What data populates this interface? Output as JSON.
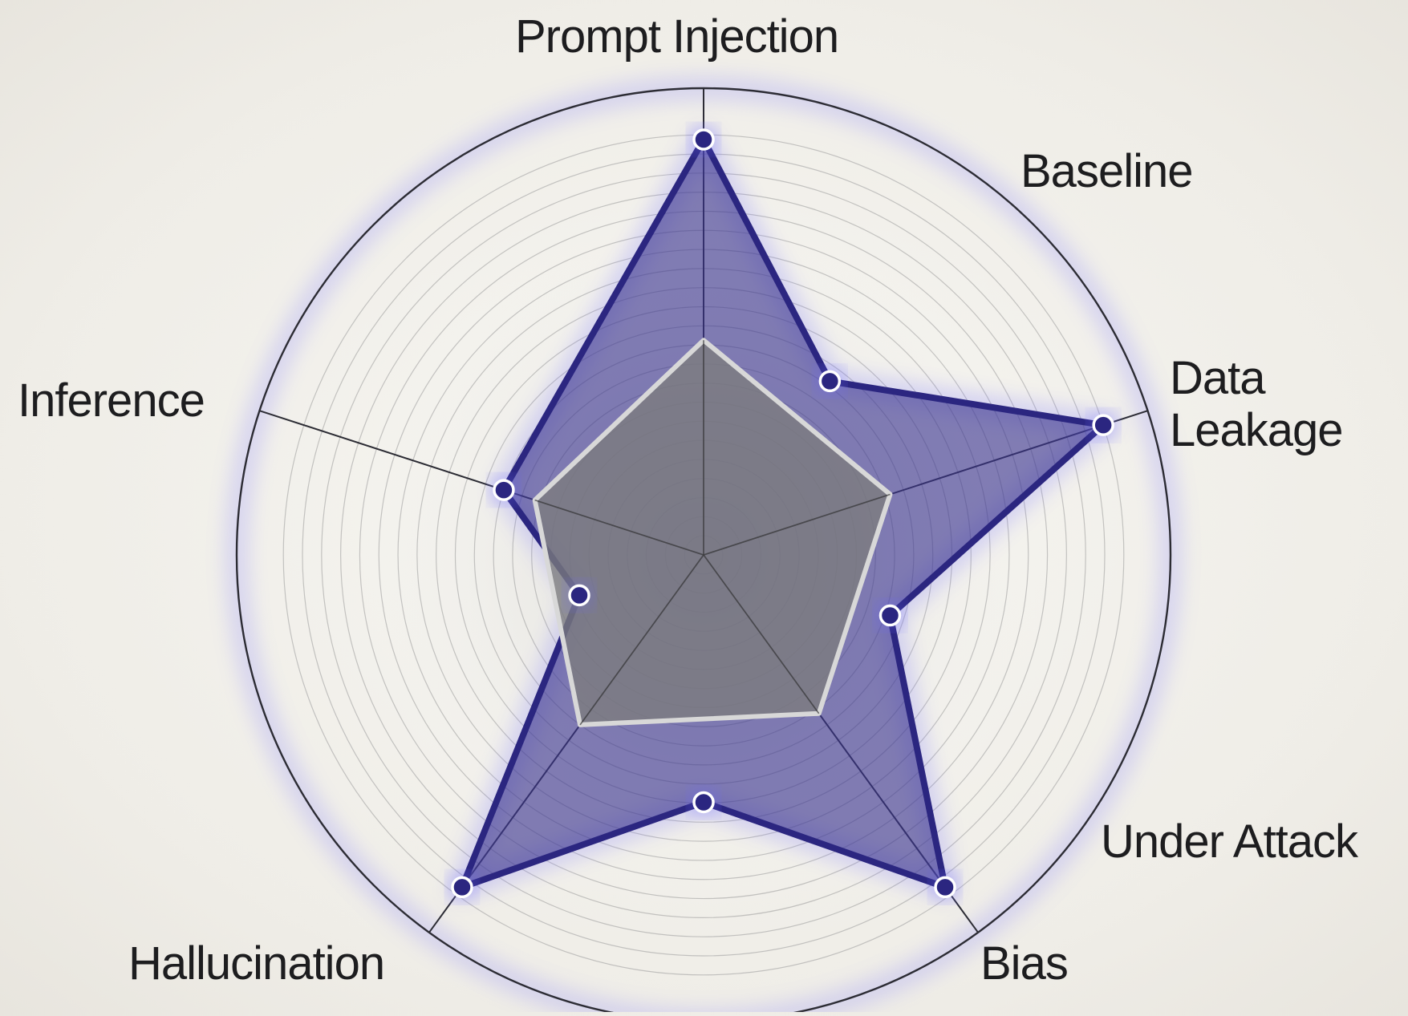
{
  "chart_data": {
    "type": "radar",
    "title": "",
    "axes": [
      "Prompt Injection",
      "Data Leakage",
      "Bias",
      "Hallucination",
      "Inference"
    ],
    "series": [
      {
        "name": "Baseline",
        "values": [
          0.46,
          0.42,
          0.42,
          0.45,
          0.38
        ],
        "color": "#8a8a8a"
      },
      {
        "name": "Under Attack",
        "values": [
          0.89,
          0.9,
          0.88,
          0.88,
          0.45
        ],
        "color": "#2e2a8a"
      }
    ],
    "inner_values": [
      0.46,
      0.42,
      0.53,
      0.28
    ],
    "range": [
      0,
      1
    ],
    "grid": true
  },
  "labels": {
    "prompt_injection": "Prompt Injection",
    "data": "Data",
    "leakage": "Leakage",
    "bias": "Bias",
    "hallucination": "Hallucination",
    "inference": "Inference",
    "baseline": "Baseline",
    "under_attack": "Under Attack"
  },
  "colors": {
    "attack_stroke": "#2b2680",
    "attack_fill": "#3a3490",
    "baseline_fill": "#7c7c7c",
    "baseline_stroke": "#d8d8d8",
    "glow": "#6f6cff"
  }
}
